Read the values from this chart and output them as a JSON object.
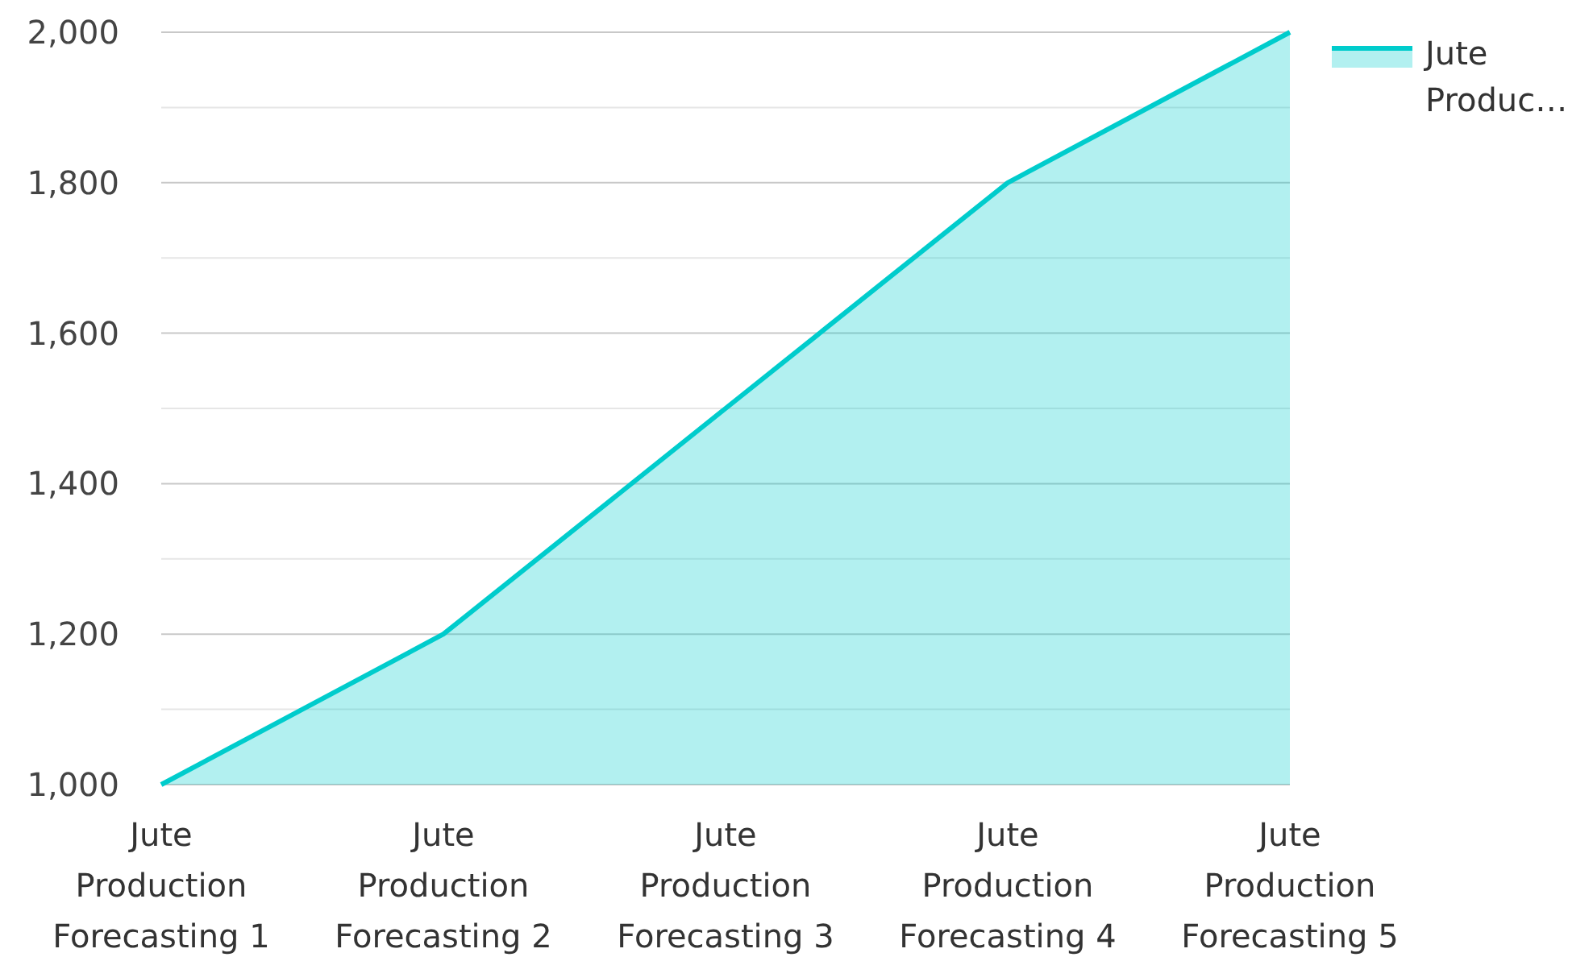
{
  "chart_data": {
    "type": "area",
    "categories": [
      "Jute Production Forecasting 1",
      "Jute Production Forecasting 2",
      "Jute Production Forecasting 3",
      "Jute Production Forecasting 4",
      "Jute Production Forecasting 5"
    ],
    "series": [
      {
        "name": "Jute Produc…",
        "color": "#00cccc",
        "values": [
          1000,
          1200,
          1500,
          1800,
          2000
        ]
      }
    ],
    "ylim": [
      1000,
      2000
    ],
    "yticks": [
      {
        "value": 1000,
        "label": "1,000"
      },
      {
        "value": 1100,
        "label": null
      },
      {
        "value": 1200,
        "label": "1,200"
      },
      {
        "value": 1300,
        "label": null
      },
      {
        "value": 1400,
        "label": "1,400"
      },
      {
        "value": 1500,
        "label": null
      },
      {
        "value": 1600,
        "label": "1,600"
      },
      {
        "value": 1700,
        "label": null
      },
      {
        "value": 1800,
        "label": "1,800"
      },
      {
        "value": 1900,
        "label": null
      },
      {
        "value": 2000,
        "label": "2,000"
      }
    ],
    "grid": "y",
    "legend": "top right"
  }
}
